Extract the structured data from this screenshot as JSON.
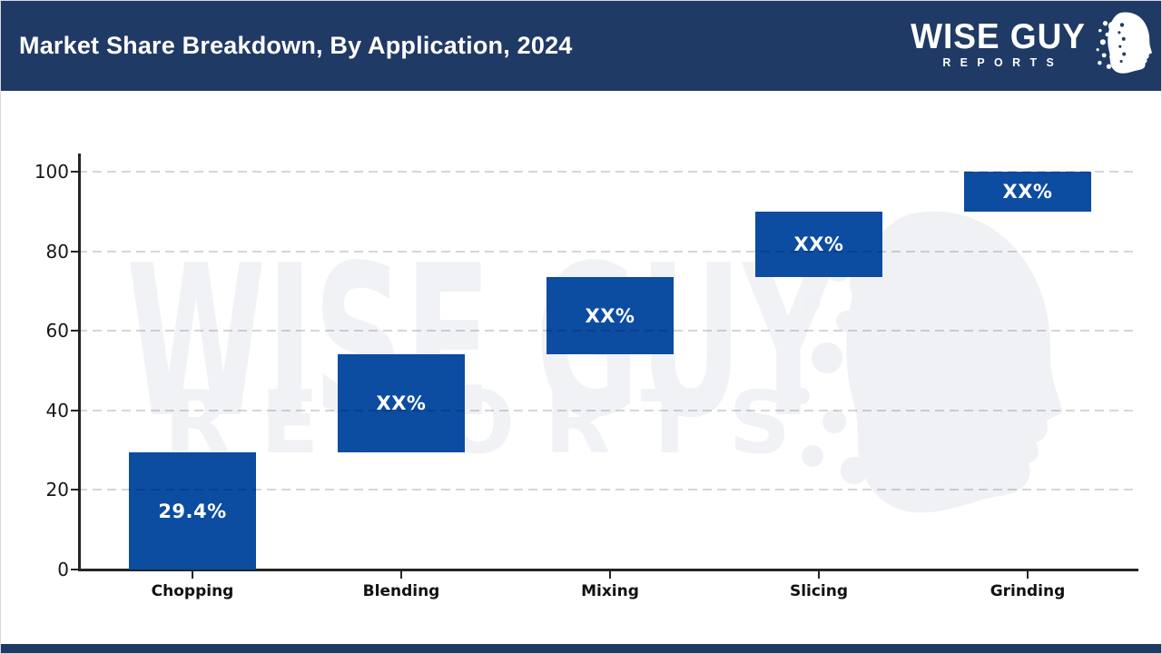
{
  "header": {
    "title": "Market Share Breakdown, By Application, 2024",
    "logo_line1": "WISE GUY",
    "logo_line2": "REPORTS"
  },
  "watermark": {
    "line1": "WISE GUY",
    "line2": "R E P O R T S"
  },
  "colors": {
    "header_bg": "#203a66",
    "footer_bg": "#203a66",
    "bar_fill": "#0c4ca1",
    "bar_label_text": "#ffffff",
    "axis": "#262626",
    "grid": "#d9d9d9",
    "watermark": "#f1f2f5"
  },
  "chart_data": {
    "type": "bar",
    "subtype": "waterfall",
    "title": "Market Share Breakdown, By Application, 2024",
    "categories": [
      "Chopping",
      "Blending",
      "Mixing",
      "Slicing",
      "Grinding"
    ],
    "segments": [
      {
        "category": "Chopping",
        "start": 0,
        "end": 29.4,
        "value_label": "29.4%"
      },
      {
        "category": "Blending",
        "start": 29.4,
        "end": 54.0,
        "value_label": "XX%"
      },
      {
        "category": "Mixing",
        "start": 54.0,
        "end": 73.5,
        "value_label": "XX%"
      },
      {
        "category": "Slicing",
        "start": 73.5,
        "end": 90.0,
        "value_label": "XX%"
      },
      {
        "category": "Grinding",
        "start": 90.0,
        "end": 100.0,
        "value_label": "XX%"
      }
    ],
    "y_ticks": [
      0,
      20,
      40,
      60,
      80,
      100
    ],
    "ylim": [
      0,
      105
    ],
    "xlabel": "",
    "ylabel": "",
    "grid": "horizontal-dashed",
    "legend": "none"
  }
}
